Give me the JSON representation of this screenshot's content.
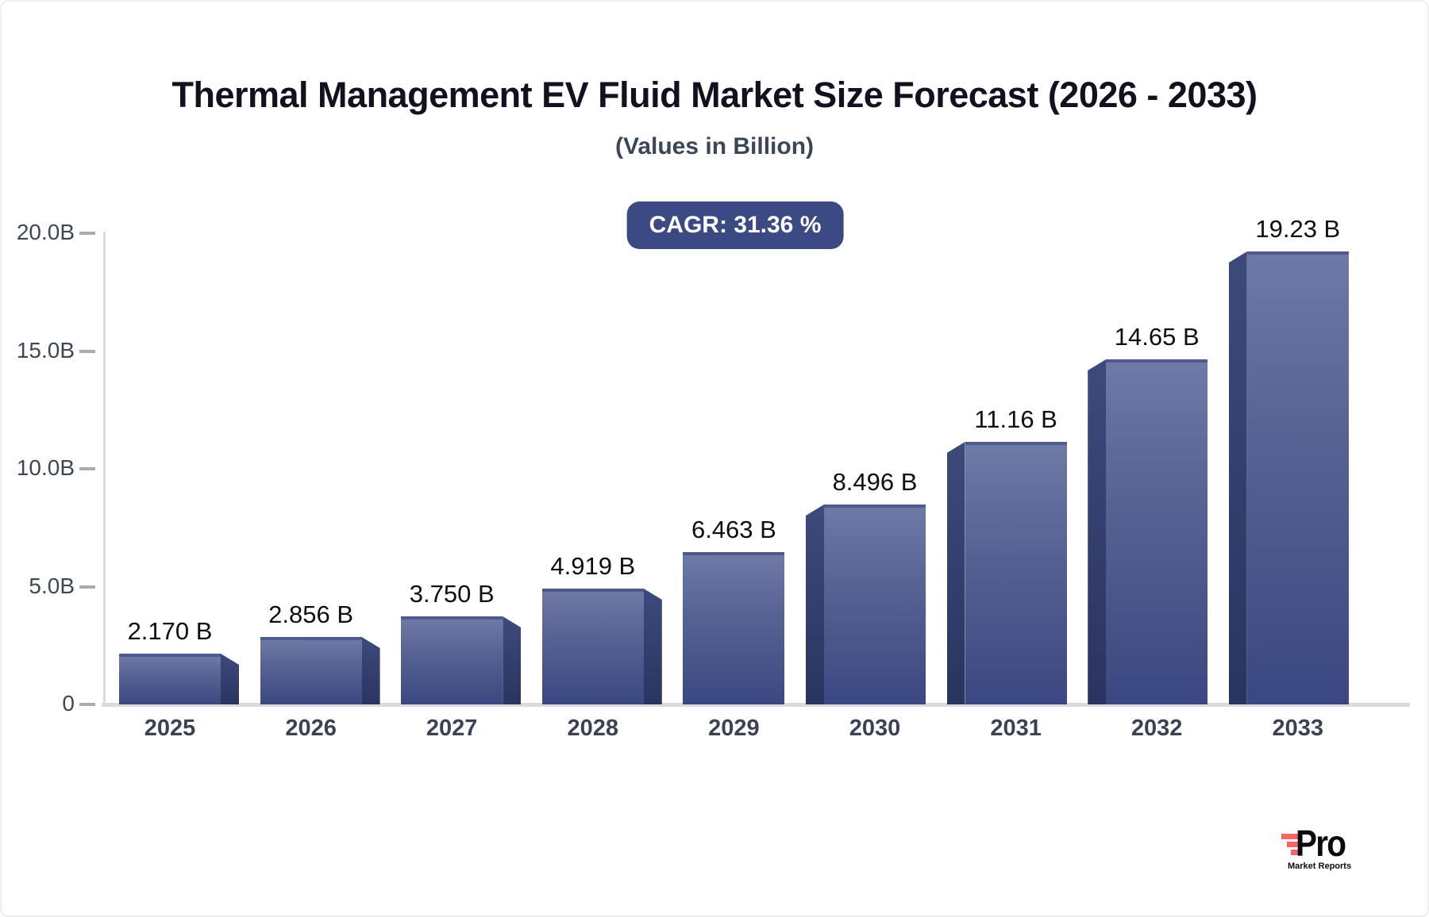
{
  "title": "Thermal Management EV Fluid Market Size Forecast (2026 - 2033)",
  "subtitle": "(Values in Billion)",
  "cagr_badge": "CAGR: 31.36 %",
  "logo": {
    "name": "Pro",
    "tagline": "Market Reports",
    "accent_color": "#f56762"
  },
  "colors": {
    "badge_bg": "#3b4a82",
    "bar_face_top": "#6e79a6",
    "bar_face_bottom": "#3b4781",
    "bar_side": "#2a3460",
    "axis_line": "#d9dbe1",
    "axis_text": "#3e4756"
  },
  "chart_data": {
    "type": "bar",
    "title": "Thermal Management EV Fluid Market Size Forecast (2026 - 2033)",
    "subtitle": "(Values in Billion)",
    "xlabel": "",
    "ylabel": "",
    "categories": [
      "2025",
      "2026",
      "2027",
      "2028",
      "2029",
      "2030",
      "2031",
      "2032",
      "2033"
    ],
    "values": [
      2.17,
      2.856,
      3.75,
      4.919,
      6.463,
      8.496,
      11.16,
      14.65,
      19.23
    ],
    "bar_labels": [
      "2.170 B",
      "2.856 B",
      "3.750 B",
      "4.919 B",
      "6.463 B",
      "8.496 B",
      "11.16 B",
      "14.65 B",
      "19.23 B"
    ],
    "ylim": [
      0,
      20
    ],
    "y_ticks": [
      {
        "value": 0,
        "label": "0"
      },
      {
        "value": 5,
        "label": "5.0B"
      },
      {
        "value": 10,
        "label": "10.0B"
      },
      {
        "value": 15,
        "label": "15.0B"
      },
      {
        "value": 20,
        "label": "20.0B"
      }
    ],
    "grid": false,
    "legend": false,
    "annotation": "CAGR: 31.36 %",
    "style": "3d-extruded-bars, center vanishing point"
  }
}
